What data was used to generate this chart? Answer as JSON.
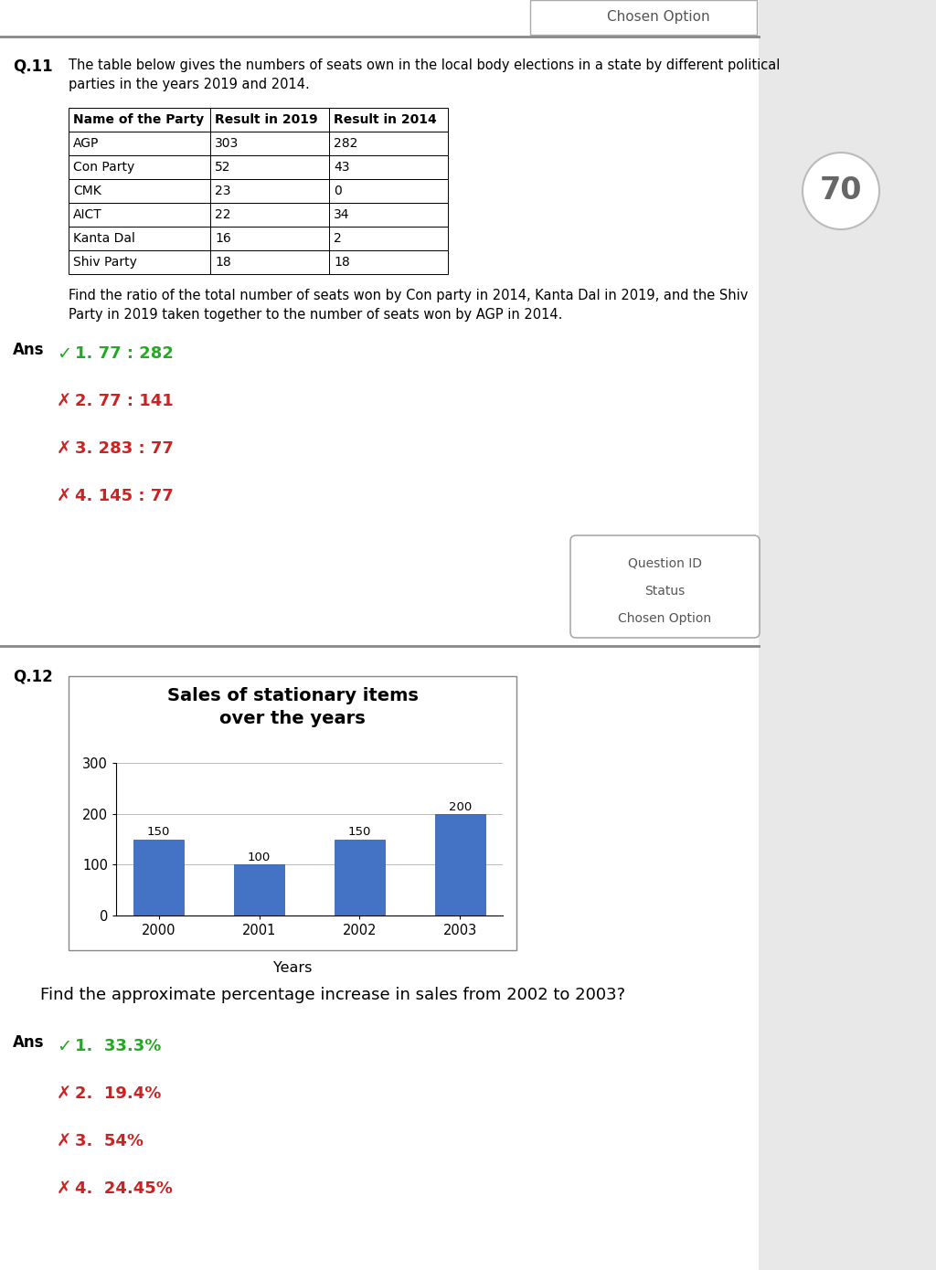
{
  "bg_color": "#e8e8e8",
  "page_bg": "#ffffff",
  "q11_label": "Q.11",
  "q11_question": "The table below gives the numbers of seats own in the local body elections in a state by different political\nparties in the years 2019 and 2014.",
  "table_headers": [
    "Name of the Party",
    "Result in 2019",
    "Result in 2014"
  ],
  "table_rows": [
    [
      "AGP",
      "303",
      "282"
    ],
    [
      "Con Party",
      "52",
      "43"
    ],
    [
      "CMK",
      "23",
      "0"
    ],
    [
      "AICT",
      "22",
      "34"
    ],
    [
      "Kanta Dal",
      "16",
      "2"
    ],
    [
      "Shiv Party",
      "18",
      "18"
    ]
  ],
  "q11_find_text": "Find the ratio of the total number of seats won by Con party in 2014, Kanta Dal in 2019, and the Shiv\nParty in 2019 taken together to the number of seats won by AGP in 2014.",
  "ans_label": "Ans",
  "q11_answers": [
    {
      "num": "1.",
      "text": "77 : 282",
      "correct": true
    },
    {
      "num": "2.",
      "text": "77 : 141",
      "correct": false
    },
    {
      "num": "3.",
      "text": "283 : 77",
      "correct": false
    },
    {
      "num": "4.",
      "text": "145 : 77",
      "correct": false
    }
  ],
  "q11_info_box": [
    "Question ID",
    "Status",
    "Chosen Option"
  ],
  "score_box": "70",
  "chosen_option_top": "Chosen Option",
  "q12_label": "Q.12",
  "chart_title_line1": "Sales of stationary items",
  "chart_title_line2": "over the years",
  "chart_years": [
    "2000",
    "2001",
    "2002",
    "2003"
  ],
  "chart_values": [
    150,
    100,
    150,
    200
  ],
  "chart_bar_color": "#4472C4",
  "chart_ylim": [
    0,
    300
  ],
  "chart_yticks": [
    0,
    100,
    200,
    300
  ],
  "chart_xlabel": "Years",
  "q12_find_text": "Find the approximate percentage increase in sales from 2002 to 2003?",
  "q12_answers": [
    {
      "num": "1.",
      "text": "33.3%",
      "correct": true
    },
    {
      "num": "2.",
      "text": "19.4%",
      "correct": false
    },
    {
      "num": "3.",
      "text": "54%",
      "correct": false
    },
    {
      "num": "4.",
      "text": "24.45%",
      "correct": false
    }
  ]
}
